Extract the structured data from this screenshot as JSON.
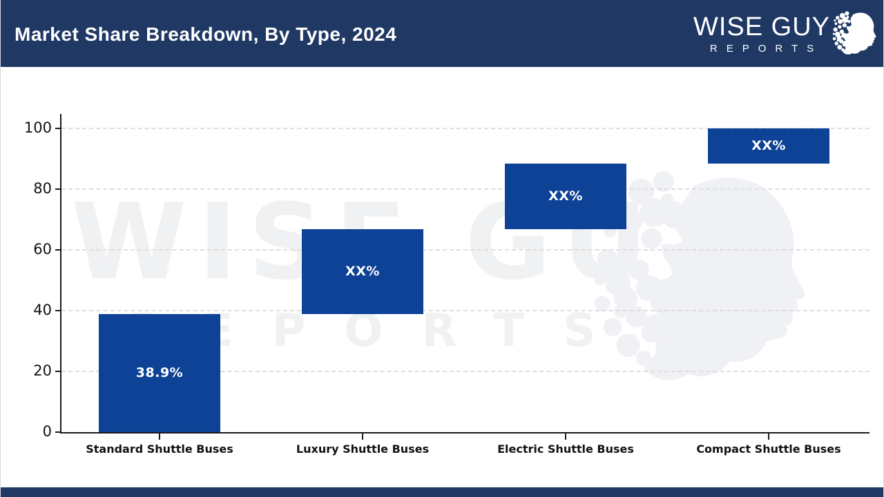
{
  "header": {
    "title": "Market Share Breakdown, By Type, 2024",
    "logo": {
      "line1": "WISE GUY",
      "line2": "REPORTS"
    }
  },
  "watermark": {
    "line1": "WISE GUY",
    "line2": "REPORTS"
  },
  "footer": {},
  "colors": {
    "header_bg": "#1f3864",
    "bar_fill": "#0d4296",
    "bar_label": "#ffffff",
    "gridline": "#dedede",
    "watermark": "#f0f1f3"
  },
  "chart_data": {
    "type": "bar",
    "subtype": "floating-waterfall",
    "title": "Market Share Breakdown, By Type, 2024",
    "categories": [
      "Standard Shuttle Buses",
      "Luxury Shuttle Buses",
      "Electric Shuttle Buses",
      "Compact Shuttle Buses"
    ],
    "segments": [
      {
        "start": 0,
        "end": 38.9,
        "label": "38.9%"
      },
      {
        "start": 38.9,
        "end": 66.8,
        "label": "XX%"
      },
      {
        "start": 66.8,
        "end": 88.5,
        "label": "XX%"
      },
      {
        "start": 88.5,
        "end": 100,
        "label": "XX%"
      }
    ],
    "xlabel": "",
    "ylabel": "",
    "ylim": [
      0,
      100
    ],
    "yticks": [
      0,
      20,
      40,
      60,
      80,
      100
    ],
    "grid": {
      "horizontal": true,
      "style": "dashed"
    },
    "legend": null
  }
}
